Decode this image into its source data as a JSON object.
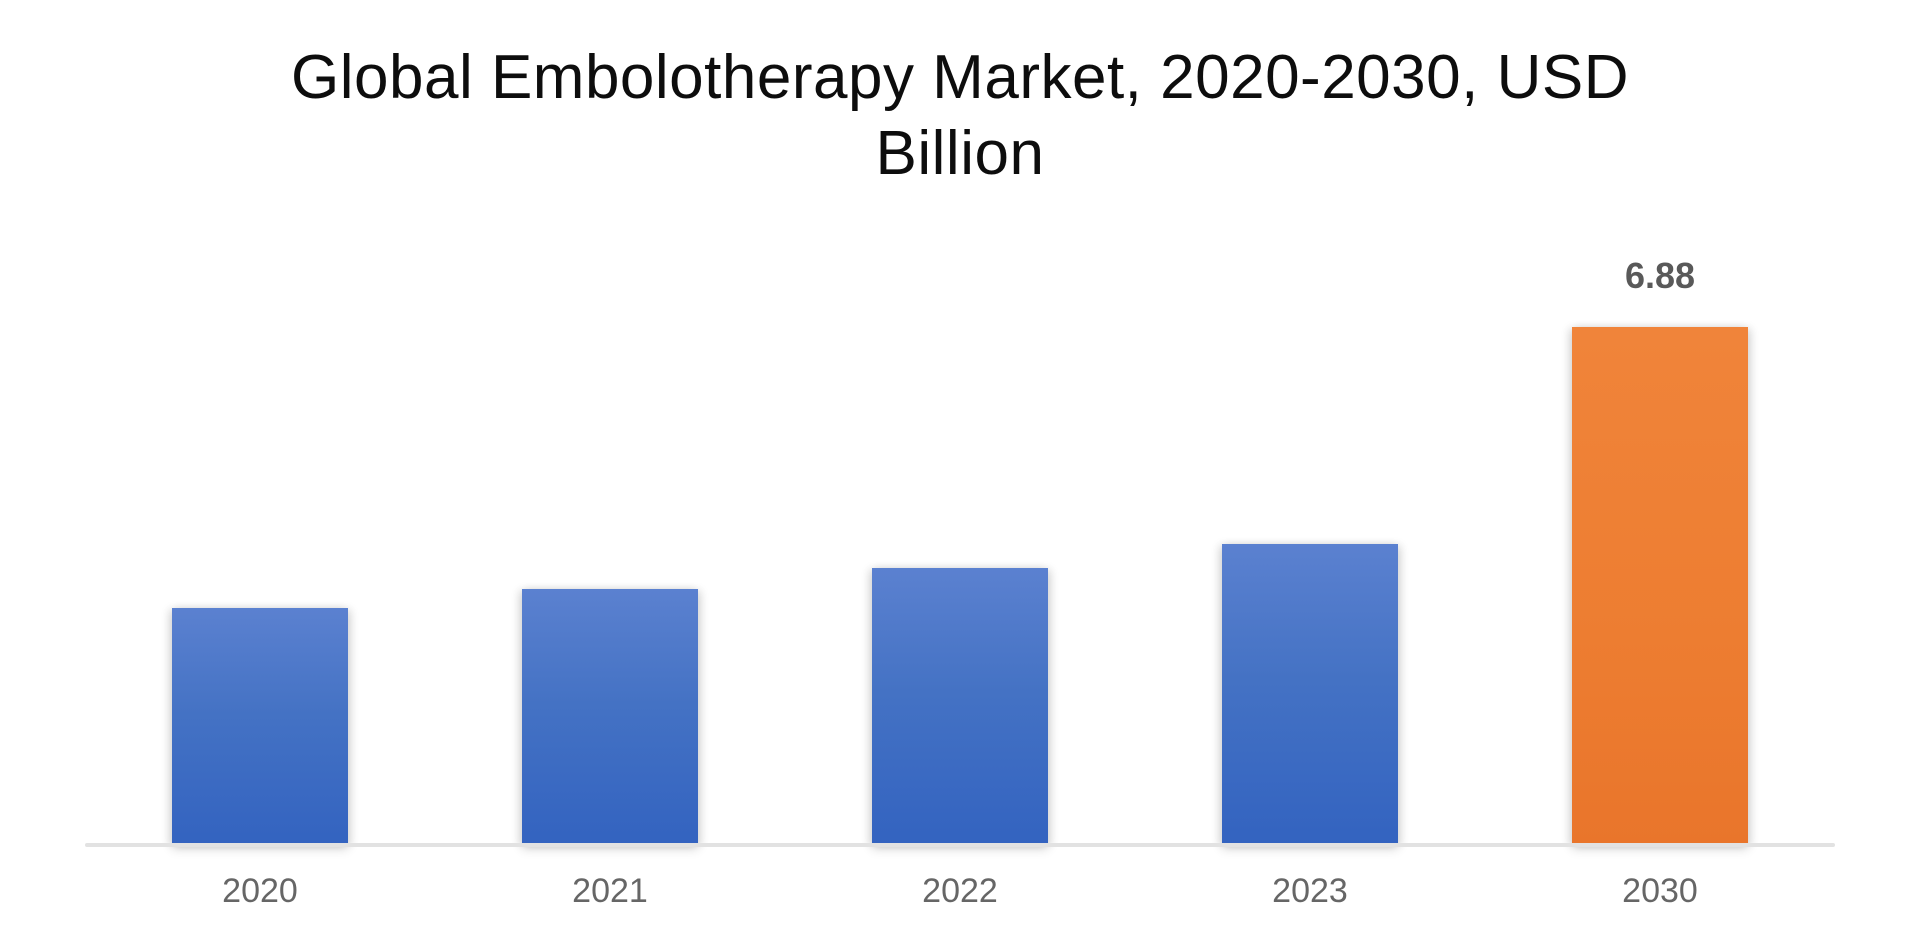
{
  "chart_data": {
    "type": "bar",
    "title": "Global Embolotherapy Market, 2020-2030, USD Billion",
    "title_lines": [
      "Global Embolotherapy Market, 2020-2030, USD",
      "Billion"
    ],
    "categories": [
      "2020",
      "2021",
      "2022",
      "2023",
      "2030"
    ],
    "values": [
      3.15,
      3.4,
      3.68,
      4.0,
      6.88
    ],
    "value_labels": [
      "",
      "",
      "",
      "",
      "6.88"
    ],
    "highlight_category": "2030",
    "xlabel": "",
    "ylabel": "",
    "ylim": [
      0,
      7.5
    ],
    "grid": false,
    "legend": false
  },
  "style": {
    "background": "#FFFFFF",
    "title_color": "#0D0D0D",
    "blue_bar_top": "#5B81D0",
    "blue_bar_base": "#4472C4",
    "blue_bar_bottom": "#3363C0",
    "orange_bar_base": "#ED7D31",
    "data_label_color": "#595959",
    "tick_label_color": "#666666",
    "axis_line_color": "#E2E2E2",
    "bar_fills": [
      "blue",
      "blue",
      "blue",
      "blue",
      "orange"
    ]
  }
}
